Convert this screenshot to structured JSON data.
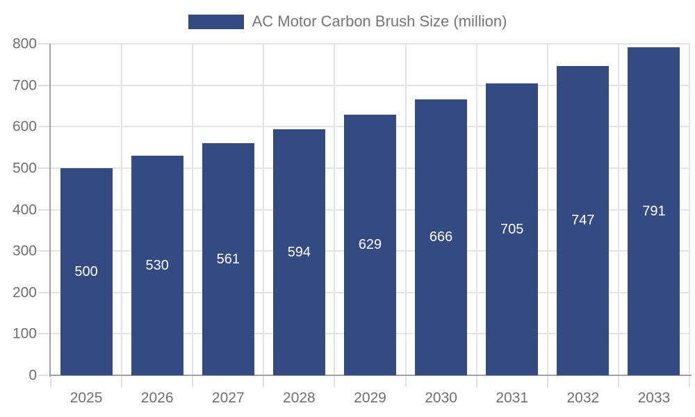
{
  "legend": {
    "label": "AC Motor Carbon Brush Size (million)"
  },
  "colors": {
    "bar": "#344A82",
    "axis_line": "#a0a0a0",
    "gridline": "#e3e3e3",
    "tick_mark": "#e0e0e0",
    "tick_text": "#6e6e6e",
    "legend_text": "#757575",
    "value_label": "#ffffff",
    "background": "#ffffff"
  },
  "chart_data": {
    "type": "bar",
    "title": "AC Motor Carbon Brush Size (million)",
    "categories": [
      "2025",
      "2026",
      "2027",
      "2028",
      "2029",
      "2030",
      "2031",
      "2032",
      "2033"
    ],
    "values": [
      500,
      530,
      561,
      594,
      629,
      666,
      705,
      747,
      791
    ],
    "series_name": "AC Motor Carbon Brush Size (million)",
    "xlabel": "",
    "ylabel": "",
    "ylim": [
      0,
      800
    ],
    "ytick_interval": 100,
    "ytick_labels": [
      "0",
      "100",
      "200",
      "300",
      "400",
      "500",
      "600",
      "700",
      "800"
    ],
    "grid": true,
    "legend_position": "top-center",
    "value_label_style": "white-centered-inside-bar"
  }
}
